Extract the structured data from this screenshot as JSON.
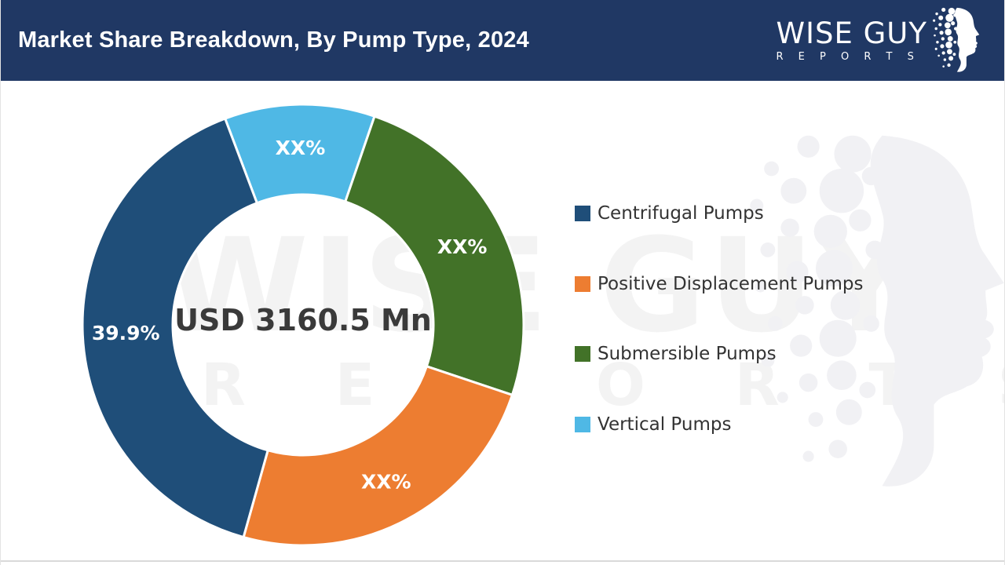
{
  "header": {
    "title": "Market Share Breakdown, By Pump Type, 2024",
    "background_color": "#203864",
    "logo": {
      "line1": "WISE GUY",
      "line2": "R E P O R T S"
    }
  },
  "watermark": {
    "line1": "WISE GUY",
    "line2": "R E P O R T S"
  },
  "chart_data": {
    "type": "pie",
    "variant": "donut",
    "title": "Market Share Breakdown, By Pump Type, 2024",
    "center_label": "USD 3160.5 Mn",
    "legend_position": "right",
    "segments": [
      {
        "name": "Centrifugal Pumps",
        "label": "39.9%",
        "value_pct": 39.9,
        "color": "#1F4E79"
      },
      {
        "name": "Positive Displacement Pumps",
        "label": "XX%",
        "value_pct": 24.2,
        "color": "#ED7D31"
      },
      {
        "name": "Submersible Pumps",
        "label": "XX%",
        "value_pct": 24.9,
        "color": "#427228"
      },
      {
        "name": "Vertical Pumps",
        "label": "XX%",
        "value_pct": 11.0,
        "color": "#4FB8E5"
      }
    ],
    "start_angle_deg": -20.7,
    "clockwise_order": [
      "Vertical Pumps",
      "Submersible Pumps",
      "Positive Displacement Pumps",
      "Centrifugal Pumps"
    ]
  }
}
